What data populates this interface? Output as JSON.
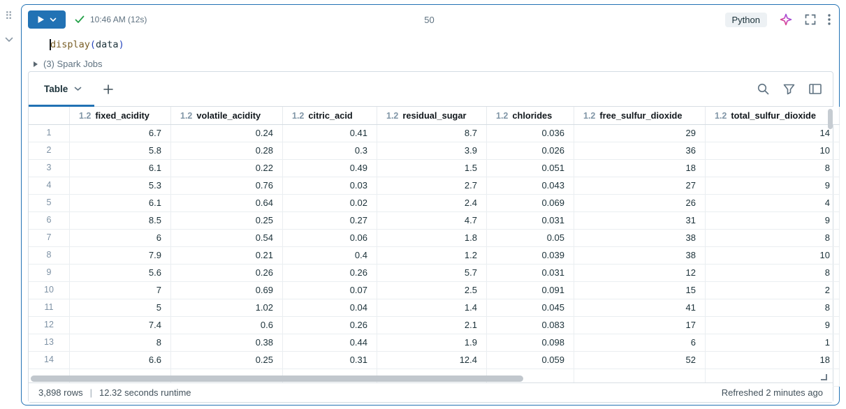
{
  "colors": {
    "accent_blue": "#2272B4",
    "success_green": "#24A148",
    "text_dark": "#1B3139",
    "text_muted": "#5F7281",
    "type_slate": "#8196A7"
  },
  "cell": {
    "toolbar": {
      "run_time": "10:46 AM (12s)",
      "cell_number": "50",
      "language": "Python"
    },
    "code": {
      "function": "display",
      "open_paren": "(",
      "argument": "data",
      "close_paren": ")"
    },
    "spark_jobs_label": "(3) Spark Jobs"
  },
  "results": {
    "active_tab": "Table",
    "table": {
      "columns": [
        {
          "type": "1.2",
          "name": "fixed_acidity"
        },
        {
          "type": "1.2",
          "name": "volatile_acidity"
        },
        {
          "type": "1.2",
          "name": "citric_acid"
        },
        {
          "type": "1.2",
          "name": "residual_sugar"
        },
        {
          "type": "1.2",
          "name": "chlorides"
        },
        {
          "type": "1.2",
          "name": "free_sulfur_dioxide"
        },
        {
          "type": "1.2",
          "name": "total_sulfur_dioxide"
        }
      ],
      "rows": [
        [
          "1",
          "6.7",
          "0.24",
          "0.41",
          "8.7",
          "0.036",
          "29",
          "14"
        ],
        [
          "2",
          "5.8",
          "0.28",
          "0.3",
          "3.9",
          "0.026",
          "36",
          "10"
        ],
        [
          "3",
          "6.1",
          "0.22",
          "0.49",
          "1.5",
          "0.051",
          "18",
          "8"
        ],
        [
          "4",
          "5.3",
          "0.76",
          "0.03",
          "2.7",
          "0.043",
          "27",
          "9"
        ],
        [
          "5",
          "6.1",
          "0.64",
          "0.02",
          "2.4",
          "0.069",
          "26",
          "4"
        ],
        [
          "6",
          "8.5",
          "0.25",
          "0.27",
          "4.7",
          "0.031",
          "31",
          "9"
        ],
        [
          "7",
          "6",
          "0.54",
          "0.06",
          "1.8",
          "0.05",
          "38",
          "8"
        ],
        [
          "8",
          "7.9",
          "0.21",
          "0.4",
          "1.2",
          "0.039",
          "38",
          "10"
        ],
        [
          "9",
          "5.6",
          "0.26",
          "0.26",
          "5.7",
          "0.031",
          "12",
          "8"
        ],
        [
          "10",
          "7",
          "0.69",
          "0.07",
          "2.5",
          "0.091",
          "15",
          "2"
        ],
        [
          "11",
          "5",
          "1.02",
          "0.04",
          "1.4",
          "0.045",
          "41",
          "8"
        ],
        [
          "12",
          "7.4",
          "0.6",
          "0.26",
          "2.1",
          "0.083",
          "17",
          "9"
        ],
        [
          "13",
          "8",
          "0.38",
          "0.44",
          "1.9",
          "0.098",
          "6",
          "1"
        ],
        [
          "14",
          "6.6",
          "0.25",
          "0.31",
          "12.4",
          "0.059",
          "52",
          "18"
        ]
      ]
    },
    "footer": {
      "row_count": "3,898 rows",
      "separator": "|",
      "runtime": "12.32 seconds runtime",
      "refreshed": "Refreshed 2 minutes ago"
    }
  }
}
